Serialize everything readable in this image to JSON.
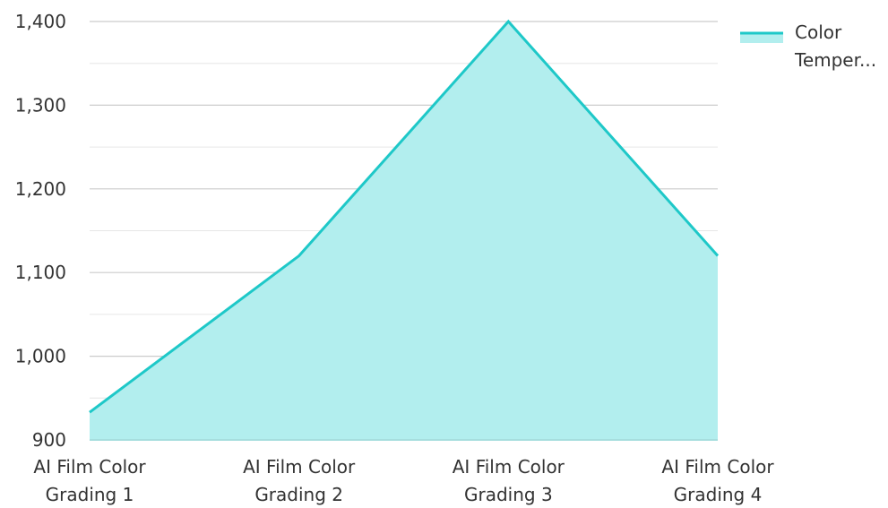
{
  "chart_data": {
    "type": "area",
    "categories": [
      "AI Film Color Grading 1",
      "AI Film Color Grading 2",
      "AI Film Color Grading 3",
      "AI Film Color Grading 4"
    ],
    "category_lines": [
      [
        "AI Film Color",
        "Grading 1"
      ],
      [
        "AI Film Color",
        "Grading 2"
      ],
      [
        "AI Film Color",
        "Grading 3"
      ],
      [
        "AI Film Color",
        "Grading 4"
      ]
    ],
    "series": [
      {
        "name": "Color Temper...",
        "values": [
          933,
          1120,
          1400,
          1120
        ]
      }
    ],
    "legend_lines": [
      "Color",
      "Temper..."
    ],
    "legend_position": "top-right",
    "ylim": [
      900,
      1400
    ],
    "y_ticks": [
      900,
      1000,
      1100,
      1200,
      1300,
      1400
    ],
    "y_tick_labels": [
      "900",
      "1,000",
      "1,100",
      "1,200",
      "1,300",
      "1,400"
    ],
    "minor_grid": true,
    "grid": true,
    "colors": {
      "line": "#1ec8c8",
      "fill": "#b2eeee",
      "grid": "#cccccc",
      "minor_grid": "#e6e6e6"
    }
  }
}
